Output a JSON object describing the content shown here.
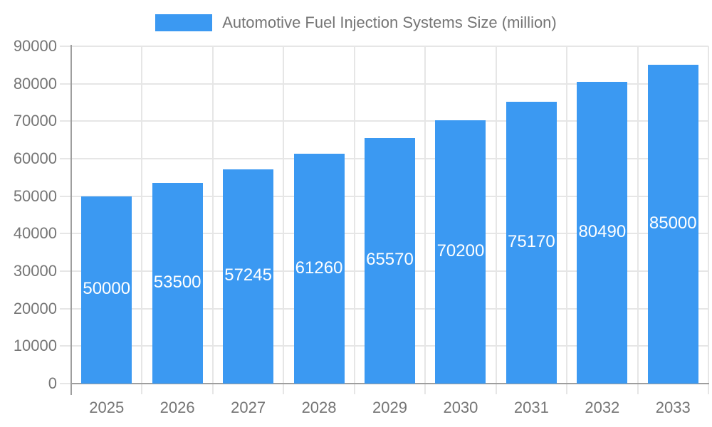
{
  "chart_data": {
    "type": "bar",
    "title": "Automotive Fuel Injection Systems Size (million)",
    "legend_position": "top-center",
    "categories": [
      "2025",
      "2026",
      "2027",
      "2028",
      "2029",
      "2030",
      "2031",
      "2032",
      "2033"
    ],
    "values": [
      50000,
      53500,
      57245,
      61260,
      65570,
      70200,
      75170,
      80490,
      85000
    ],
    "bar_value_labels": [
      "50000",
      "53500",
      "57245",
      "61260",
      "65570",
      "70200",
      "75170",
      "80490",
      "85000"
    ],
    "xlabel": "",
    "ylabel": "",
    "ylim": [
      0,
      90000
    ],
    "yticks": [
      0,
      10000,
      20000,
      30000,
      40000,
      50000,
      60000,
      70000,
      80000,
      90000
    ],
    "grid": true,
    "colors": {
      "bar": "#3B99F2",
      "bar_label": "#FFFFFF",
      "axis_text": "#757575",
      "grid_line": "#E6E6E6",
      "axis_line": "#9E9E9E",
      "background": "#FFFFFF"
    }
  }
}
